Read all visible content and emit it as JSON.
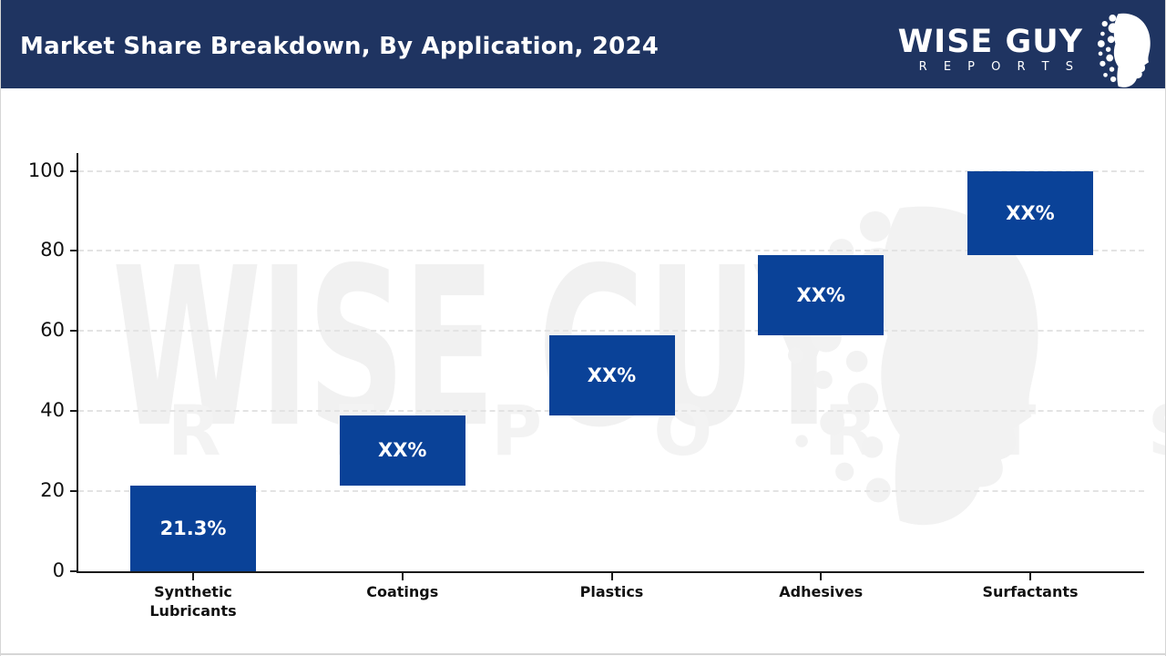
{
  "header": {
    "title": "Market Share Breakdown, By Application, 2024",
    "bg_color": "#1f3461",
    "logo": {
      "name": "WISE GUY",
      "sub": "R E P O R T S"
    }
  },
  "watermark": {
    "name": "WISE GUY",
    "sub": "R E P O R T S"
  },
  "chart_data": {
    "type": "bar",
    "subtype": "waterfall",
    "title": "Market Share Breakdown, By Application, 2024",
    "categories": [
      "Synthetic Lubricants",
      "Coatings",
      "Plastics",
      "Adhesives",
      "Surfactants"
    ],
    "category_lines": [
      [
        "Synthetic",
        "Lubricants"
      ],
      [
        "Coatings"
      ],
      [
        "Plastics"
      ],
      [
        "Adhesives"
      ],
      [
        "Surfactants"
      ]
    ],
    "series": [
      {
        "name": "Market share (%)",
        "starts": [
          0,
          21.3,
          39,
          59,
          79
        ],
        "ends": [
          21.3,
          39,
          59,
          79,
          100
        ]
      }
    ],
    "bar_labels": [
      "21.3%",
      "XX%",
      "XX%",
      "XX%",
      "XX%"
    ],
    "ylim": [
      0,
      100
    ],
    "yticks": [
      0,
      20,
      40,
      60,
      80,
      100
    ],
    "bar_color": "#0a4298",
    "grid": "horizontal-dashed",
    "legend": "none"
  }
}
